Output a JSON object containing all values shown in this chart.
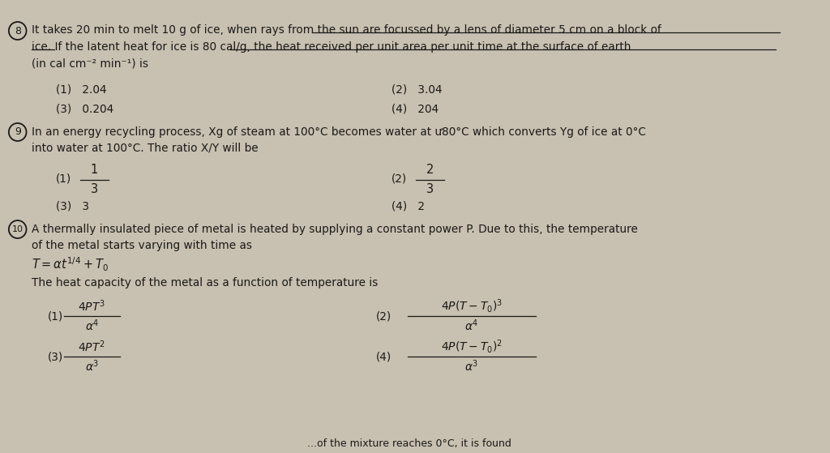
{
  "bg_color": "#c8c0b0",
  "text_color": "#1a1a1a",
  "q8_text_line1": "It takes 20 min to melt 10 g of ice, when rays from the sun are focussed by a lens of diameter 5 cm on a block of",
  "q8_text_line2": "ice. If the latent heat for ice is 80 cal/g, the heat received per unit area per unit time at the surface of earth",
  "q8_text_line3": "(in cal cm⁻² min⁻¹) is",
  "q8_opt1": "(1)   2.04",
  "q8_opt2": "(2)   3.04",
  "q8_opt3": "(3)   0.204",
  "q8_opt4": "(4)   204",
  "q9_text_line1": "In an energy recycling process, Xg of steam at 100°C becomes water at ư80°C which converts Yg of ice at 0°C",
  "q9_text_line2": "into water at 100°C. The ratio X/Y will be",
  "q9_opt1_label": "(1)",
  "q9_opt1_num": "1",
  "q9_opt1_den": "3",
  "q9_opt2_label": "(2)",
  "q9_opt2_num": "2",
  "q9_opt2_den": "3",
  "q9_opt3": "(3)   3",
  "q9_opt4": "(4)   2",
  "q10_text_line1": "A thermally insulated piece of metal is heated by supplying a constant power P. Due to this, the temperature",
  "q10_text_line2": "of the metal starts varying with time as",
  "q10_text3": "The heat capacity of the metal as a function of temperature is",
  "bottom_text": "...of the mixture reaches 0°C, it is found"
}
